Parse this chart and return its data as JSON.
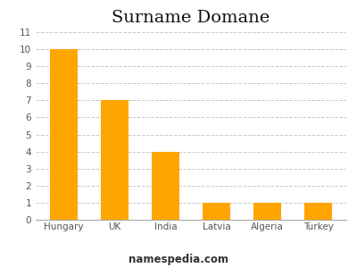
{
  "title": "Surname Domane",
  "categories": [
    "Hungary",
    "UK",
    "India",
    "Latvia",
    "Algeria",
    "Turkey"
  ],
  "values": [
    10.0,
    7.0,
    4.0,
    1.0,
    1.0,
    1.0
  ],
  "bar_color": "#FFA500",
  "ylim": [
    0,
    11
  ],
  "yticks": [
    0,
    1,
    2,
    3,
    4,
    5,
    6,
    7,
    8,
    9,
    10,
    11
  ],
  "grid_color": "#c8c8c8",
  "background_color": "#ffffff",
  "title_fontsize": 14,
  "tick_fontsize": 7.5,
  "footer_text": "namespedia.com",
  "footer_fontsize": 8.5,
  "bar_width": 0.55
}
